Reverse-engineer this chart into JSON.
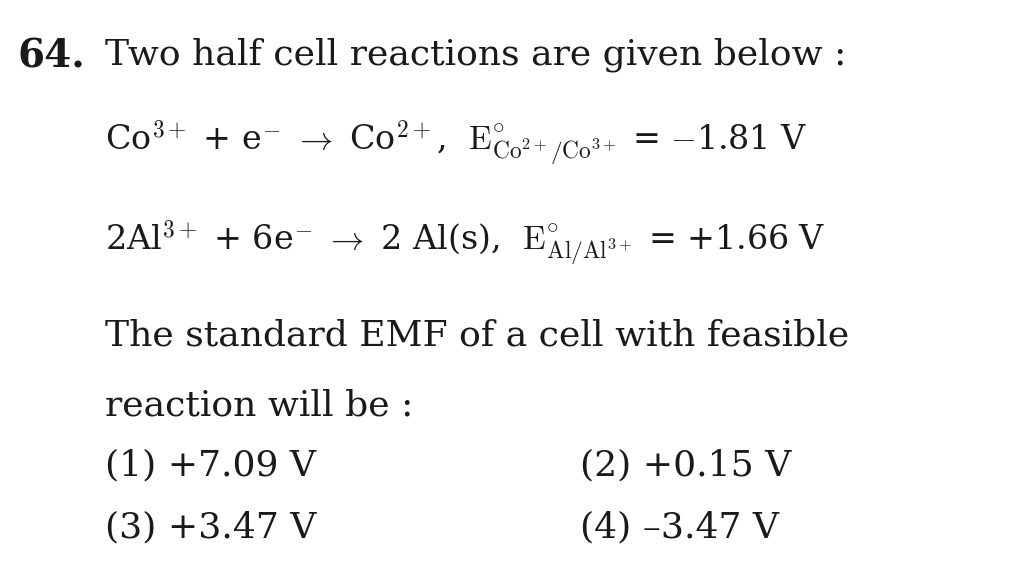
{
  "background_color": "#ffffff",
  "text_color": "#1a1a1a",
  "question_number": "64.",
  "title_line": "Two half cell reactions are given below :",
  "body_text1": "The standard EMF of a cell with feasible",
  "body_text2": "reaction will be :",
  "option1": "(1) +7.09 V",
  "option2": "(2) +0.15 V",
  "option3": "(3) +3.47 V",
  "option4": "(4) –3.47 V",
  "fig_width": 10.24,
  "fig_height": 5.8,
  "dpi": 100,
  "fontsize_main": 26,
  "fontsize_reaction": 24
}
